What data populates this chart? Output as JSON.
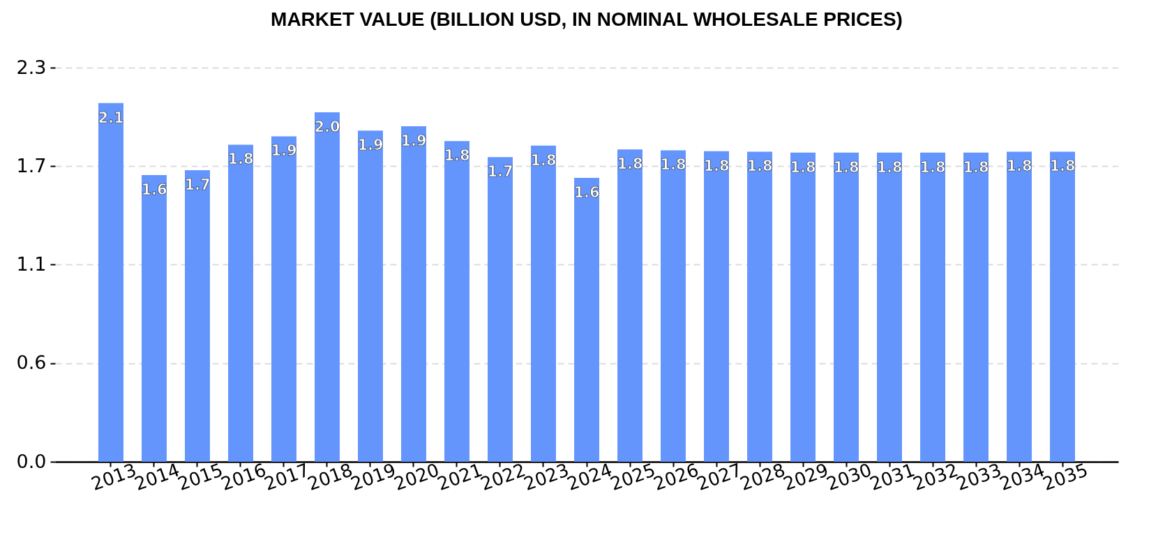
{
  "chart_data": {
    "type": "bar",
    "title": "MARKET VALUE (BILLION USD, IN NOMINAL WHOLESALE PRICES)",
    "categories": [
      "2013",
      "2014",
      "2015",
      "2016",
      "2017",
      "2018",
      "2019",
      "2020",
      "2021",
      "2022",
      "2023",
      "2024",
      "2025",
      "2026",
      "2027",
      "2028",
      "2029",
      "2030",
      "2031",
      "2032",
      "2033",
      "2034",
      "2035"
    ],
    "values": [
      2.054,
      1.642,
      1.67,
      1.816,
      1.864,
      2.001,
      1.896,
      1.921,
      1.837,
      1.745,
      1.811,
      1.626,
      1.789,
      1.784,
      1.779,
      1.776,
      1.771,
      1.771,
      1.771,
      1.771,
      1.771,
      1.776,
      1.776
    ],
    "value_labels": [
      "2.1",
      "1.6",
      "1.7",
      "1.8",
      "1.9",
      "2.0",
      "1.9",
      "1.9",
      "1.8",
      "1.7",
      "1.8",
      "1.6",
      "1.8",
      "1.8",
      "1.8",
      "1.8",
      "1.8",
      "1.8",
      "1.8",
      "1.8",
      "1.8",
      "1.8",
      "1.8"
    ],
    "color": "#6495fd",
    "ylim": [
      0,
      2.257
    ],
    "yticks": [
      {
        "value": 0,
        "label": "0.0"
      },
      {
        "value": 0.564,
        "label": "0.6"
      },
      {
        "value": 1.129,
        "label": "1.1"
      },
      {
        "value": 1.693,
        "label": "1.7"
      },
      {
        "value": 2.257,
        "label": "2.3"
      }
    ],
    "grid": "y"
  }
}
